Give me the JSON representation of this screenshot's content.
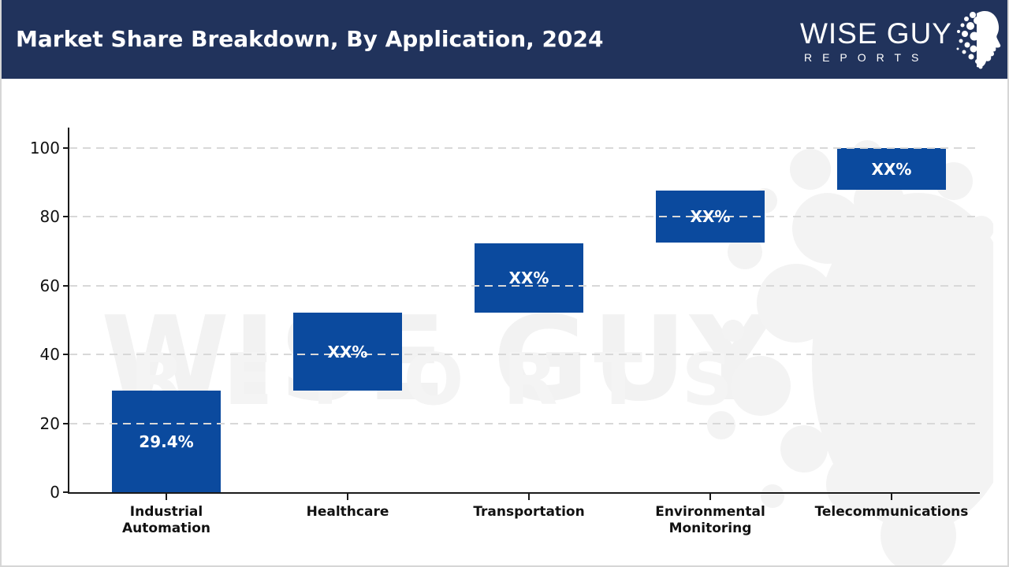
{
  "header": {
    "title": "Market Share Breakdown, By Application, 2024",
    "background_color": "#21335c",
    "logo": {
      "line1": "WISE GUY",
      "line2": "REPORTS"
    }
  },
  "watermark": {
    "line1": "WISE GUY",
    "line2": "REPORTS"
  },
  "chart_data": {
    "type": "bar",
    "variant": "waterfall",
    "title": "Market Share Breakdown, By Application, 2024",
    "categories": [
      "Industrial Automation",
      "Healthcare",
      "Transportation",
      "Environmental Monitoring",
      "Telecommunications"
    ],
    "x_tick_labels": [
      "Industrial\nAutomation",
      "Healthcare",
      "Transportation",
      "Environmental\nMonitoring",
      "Telecommunications"
    ],
    "segments": [
      {
        "category": "Industrial Automation",
        "start": 0,
        "end": 29.4,
        "label": "29.4%"
      },
      {
        "category": "Healthcare",
        "start": 29.4,
        "end": 52.2,
        "label": "XX%"
      },
      {
        "category": "Transportation",
        "start": 52.2,
        "end": 72.3,
        "label": "XX%"
      },
      {
        "category": "Environmental Monitoring",
        "start": 72.5,
        "end": 87.6,
        "label": "XX%"
      },
      {
        "category": "Telecommunications",
        "start": 87.7,
        "end": 99.8,
        "label": "XX%"
      }
    ],
    "y_ticks": [
      0,
      20,
      40,
      60,
      80,
      100
    ],
    "ylim": [
      0,
      105
    ],
    "xlabel": "",
    "ylabel": "",
    "grid": true,
    "grid_style": "dashed",
    "grid_color": "#d8d8d8",
    "bar_color": "#0b4a9e",
    "bar_label_color": "#ffffff",
    "legend": "none"
  }
}
